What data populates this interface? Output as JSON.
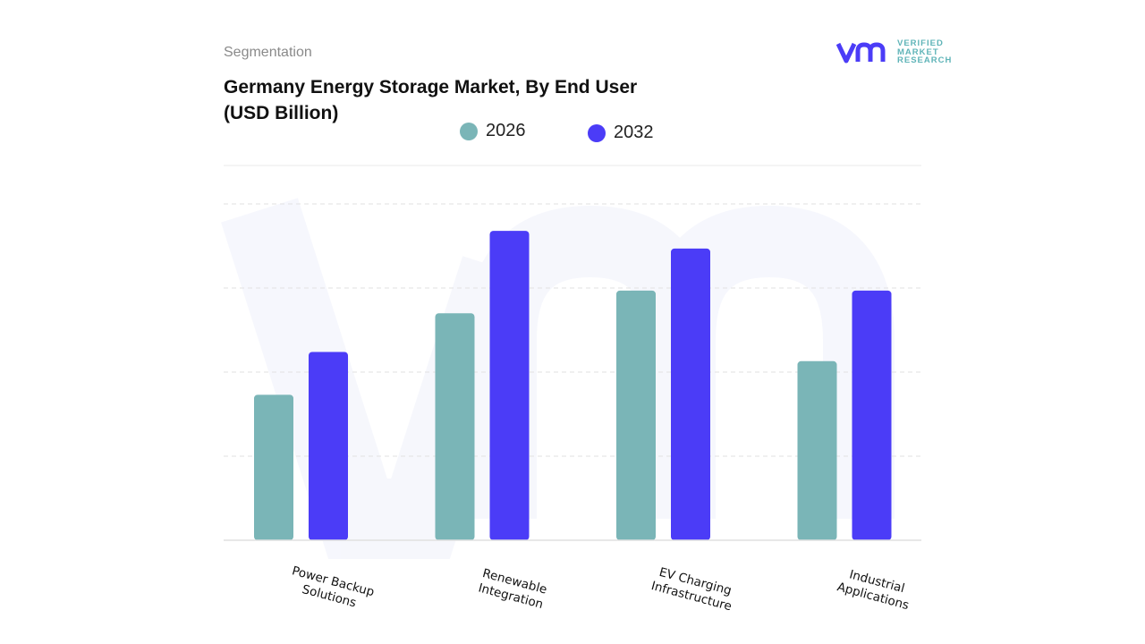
{
  "header": {
    "section": "Segmentation",
    "title_line1": "Germany Energy Storage Market, By End User",
    "title_line2": "(USD Billion)"
  },
  "logo": {
    "mark": "vmr",
    "line1": "VERIFIED",
    "line2": "MARKET",
    "line3": "RESEARCH"
  },
  "chart_data": {
    "type": "bar",
    "title": "Germany Energy Storage Market, By End User (USD Billion)",
    "categories": [
      "Power Backup Solutions",
      "Renewable Integration",
      "EV Charging Infrastructure",
      "Industrial Applications"
    ],
    "category_lines": [
      [
        "Power Backup",
        "Solutions"
      ],
      [
        "Renewable",
        "Integration"
      ],
      [
        "EV Charging",
        "Infrastructure"
      ],
      [
        "Industrial",
        "Applications"
      ]
    ],
    "series": [
      {
        "name": "2026",
        "color": "#7ab5b7",
        "values": [
          1.73,
          2.7,
          2.97,
          2.13
        ]
      },
      {
        "name": "2032",
        "color": "#4b3cf7",
        "values": [
          2.24,
          3.68,
          3.47,
          2.97
        ]
      }
    ],
    "ylim": [
      0,
      4.5
    ],
    "y_tick_labels_shown": false,
    "grid": true,
    "legend": "top-center",
    "xlabel": "",
    "ylabel": ""
  }
}
